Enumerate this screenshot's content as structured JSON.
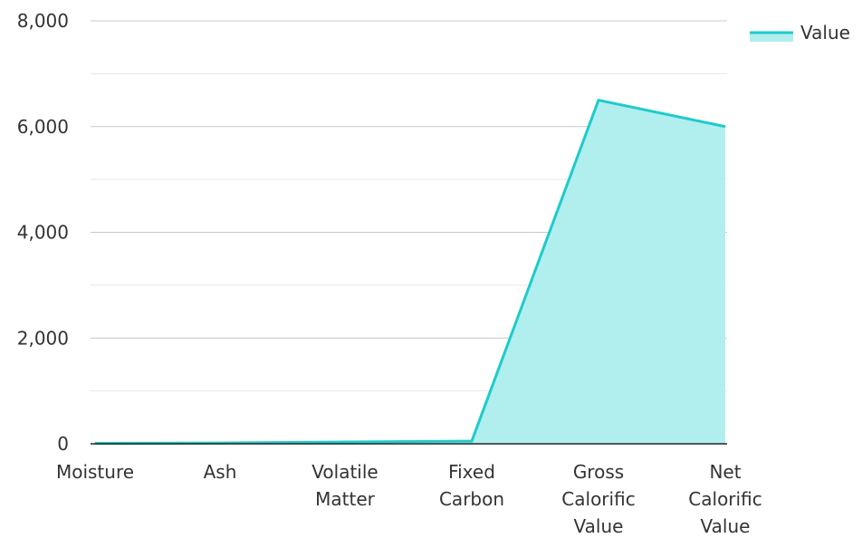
{
  "chart_data": {
    "type": "area",
    "categories": [
      [
        "Moisture"
      ],
      [
        "Ash"
      ],
      [
        "Volatile",
        "Matter"
      ],
      [
        "Fixed",
        "Carbon"
      ],
      [
        "Gross",
        "Calorific",
        "Value"
      ],
      [
        "Net",
        "Calorific",
        "Value"
      ]
    ],
    "series": [
      {
        "name": "Value",
        "values": [
          10,
          15,
          35,
          50,
          6500,
          6000
        ]
      }
    ],
    "ylim": [
      0,
      8000
    ],
    "yticks": [
      0,
      2000,
      4000,
      6000,
      8000
    ],
    "ytick_labels": [
      "0",
      "2,000",
      "4,000",
      "6,000",
      "8,000"
    ],
    "grid": true,
    "legend": "top-right",
    "colors": {
      "line": "#1ecbcb",
      "fill": "#b1eeee",
      "grid": "#c8c8c8",
      "axis": "#222222"
    }
  }
}
